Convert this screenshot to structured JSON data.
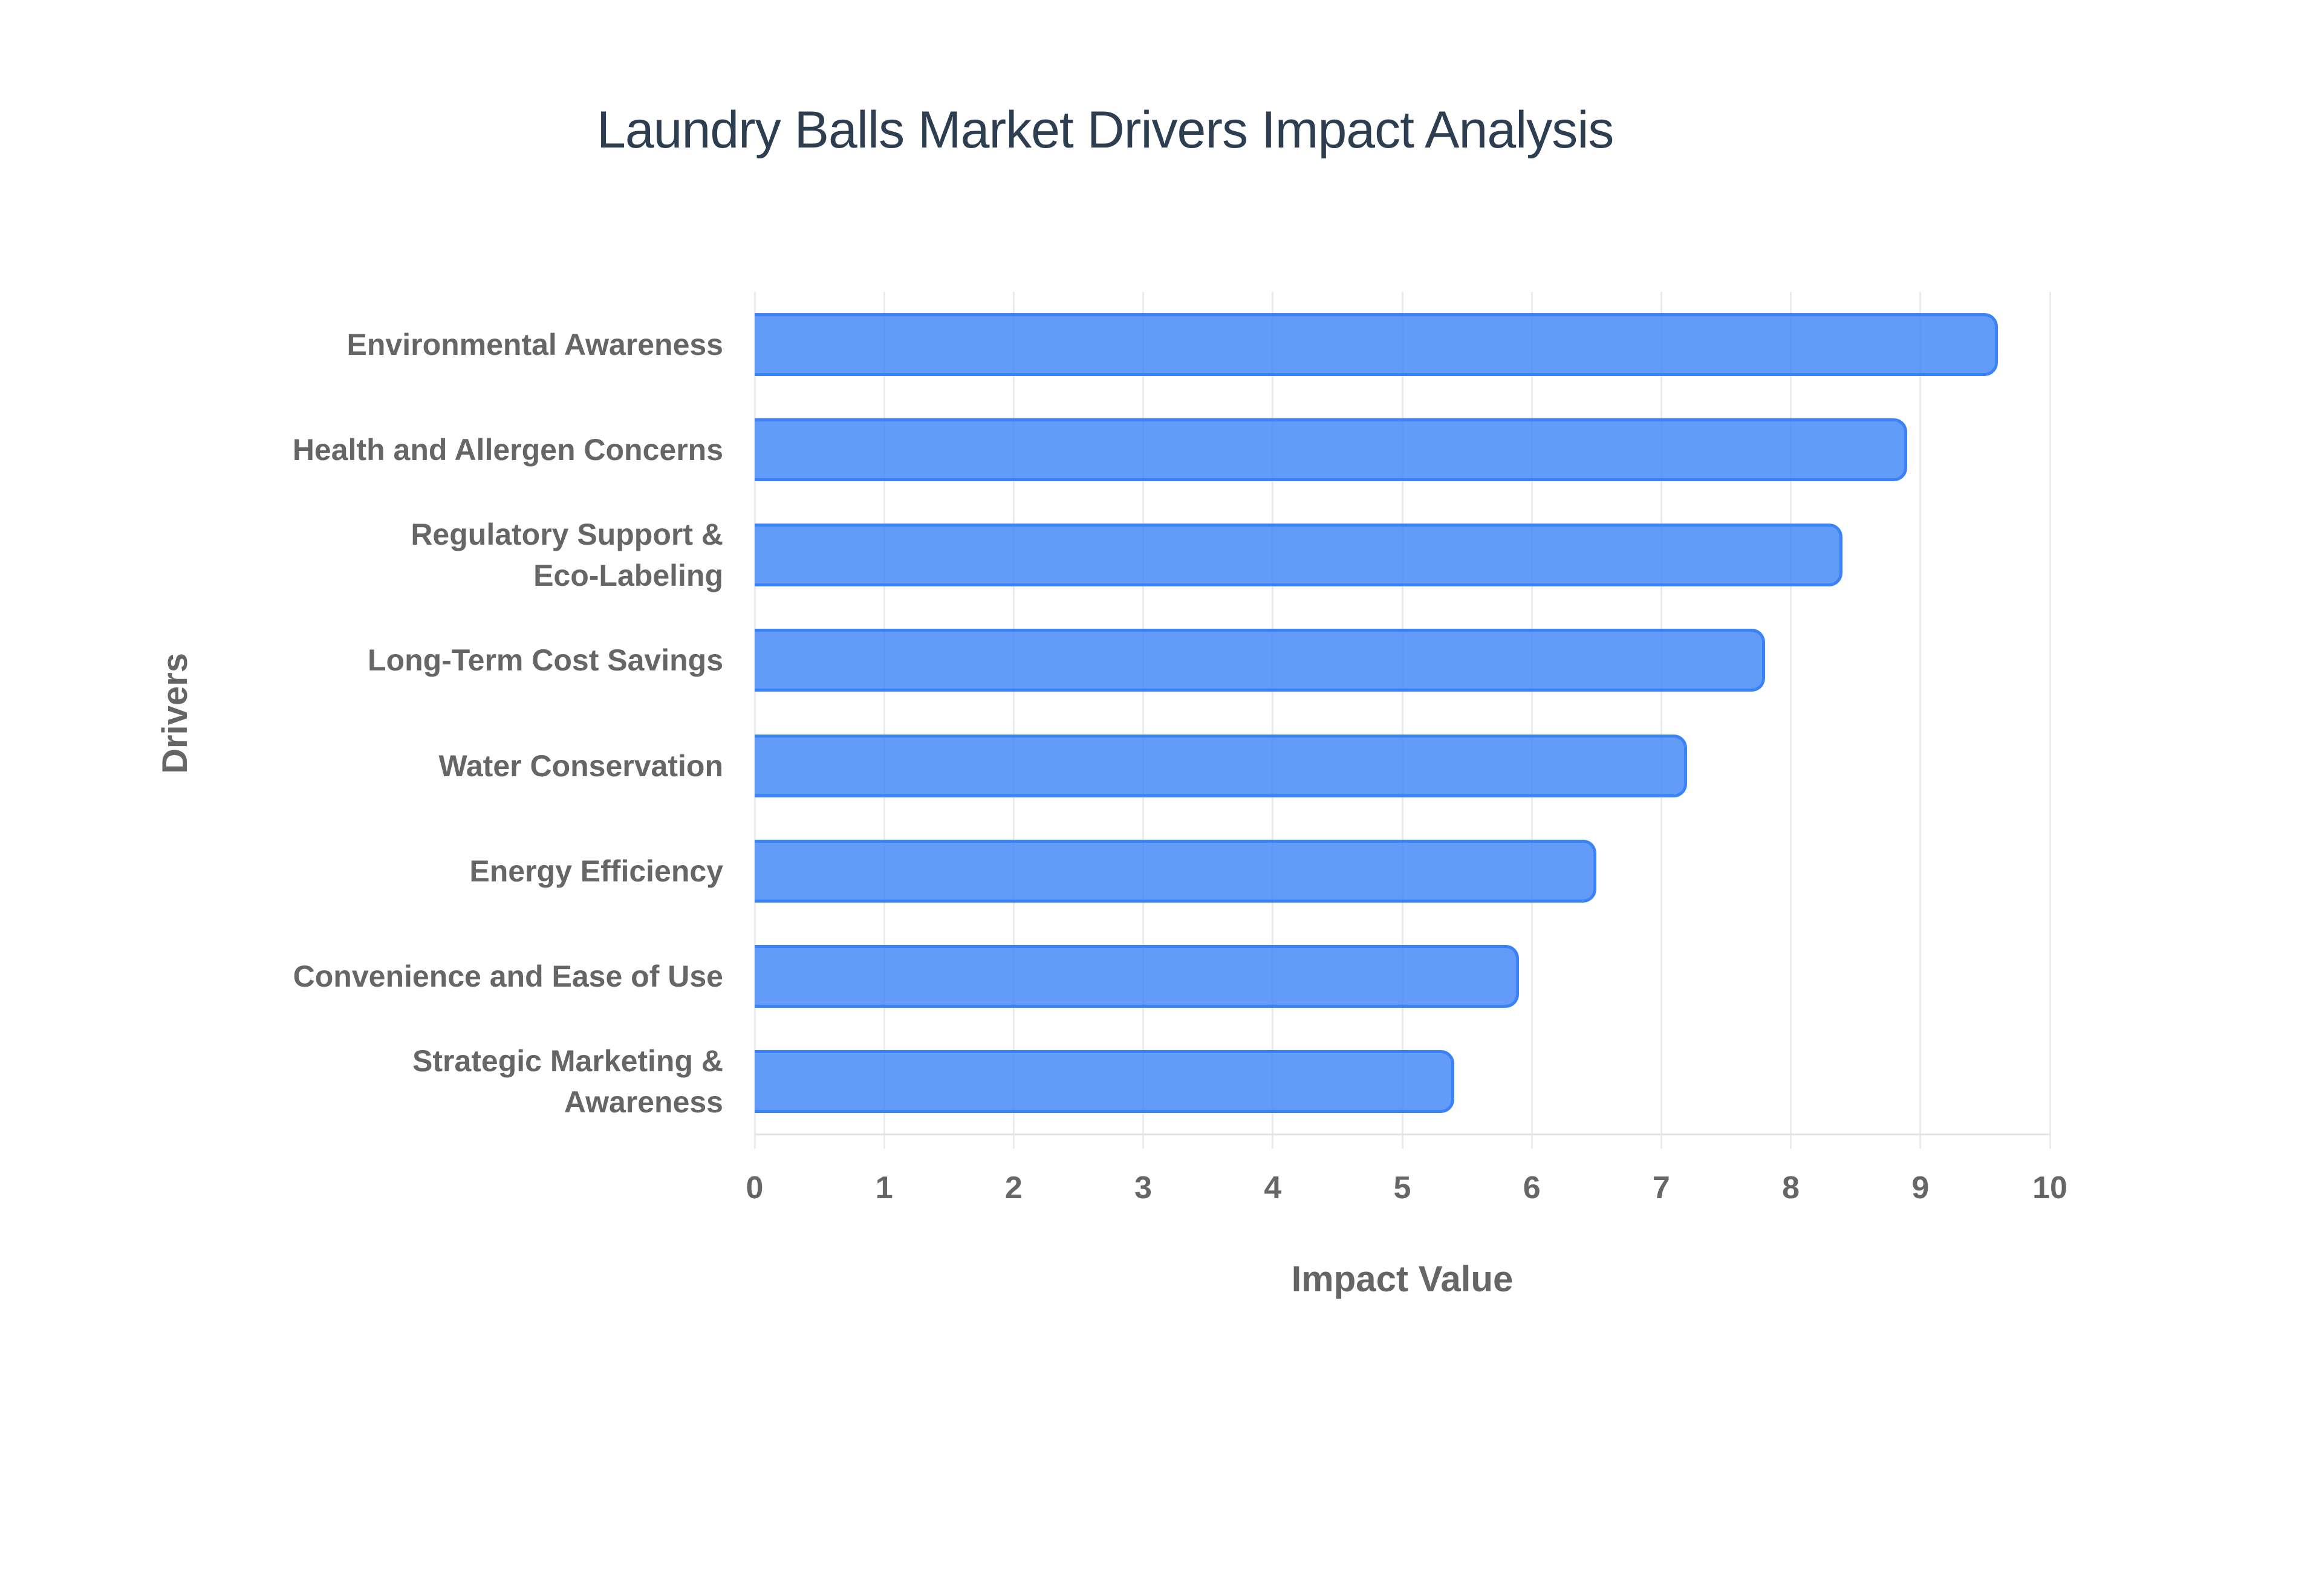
{
  "chart": {
    "title": "Laundry Balls Market Drivers Impact Analysis",
    "x_axis_title": "Impact Value",
    "y_axis_title": "Drivers",
    "x_ticks": [
      "0",
      "1",
      "2",
      "3",
      "4",
      "5",
      "6",
      "7",
      "8",
      "9",
      "10"
    ],
    "bars": [
      {
        "label_lines": [
          "Environmental Awareness"
        ],
        "value": 9.6
      },
      {
        "label_lines": [
          "Health and Allergen Concerns"
        ],
        "value": 8.9
      },
      {
        "label_lines": [
          "Regulatory Support &",
          "Eco-Labeling"
        ],
        "value": 8.4
      },
      {
        "label_lines": [
          "Long-Term Cost Savings"
        ],
        "value": 7.8
      },
      {
        "label_lines": [
          "Water Conservation"
        ],
        "value": 7.2
      },
      {
        "label_lines": [
          "Energy Efficiency"
        ],
        "value": 6.5
      },
      {
        "label_lines": [
          "Convenience and Ease of Use"
        ],
        "value": 5.9
      },
      {
        "label_lines": [
          "Strategic Marketing &",
          "Awareness"
        ],
        "value": 5.4
      }
    ],
    "colors": {
      "bar_fill": "rgba(59,130,246,0.8)",
      "bar_border": "#3b82f6",
      "title": "#2c3e50",
      "axis_text": "#666666",
      "grid": "#ebebeb"
    }
  },
  "chart_data": {
    "type": "bar",
    "orientation": "horizontal",
    "title": "Laundry Balls Market Drivers Impact Analysis",
    "xlabel": "Impact Value",
    "ylabel": "Drivers",
    "categories": [
      "Environmental Awareness",
      "Health and Allergen Concerns",
      "Regulatory Support & Eco-Labeling",
      "Long-Term Cost Savings",
      "Water Conservation",
      "Energy Efficiency",
      "Convenience and Ease of Use",
      "Strategic Marketing & Awareness"
    ],
    "values": [
      9.6,
      8.9,
      8.4,
      7.8,
      7.2,
      6.5,
      5.9,
      5.4
    ],
    "xlim": [
      0,
      10
    ],
    "x_ticks": [
      0,
      1,
      2,
      3,
      4,
      5,
      6,
      7,
      8,
      9,
      10
    ],
    "grid": true,
    "legend": "none"
  }
}
